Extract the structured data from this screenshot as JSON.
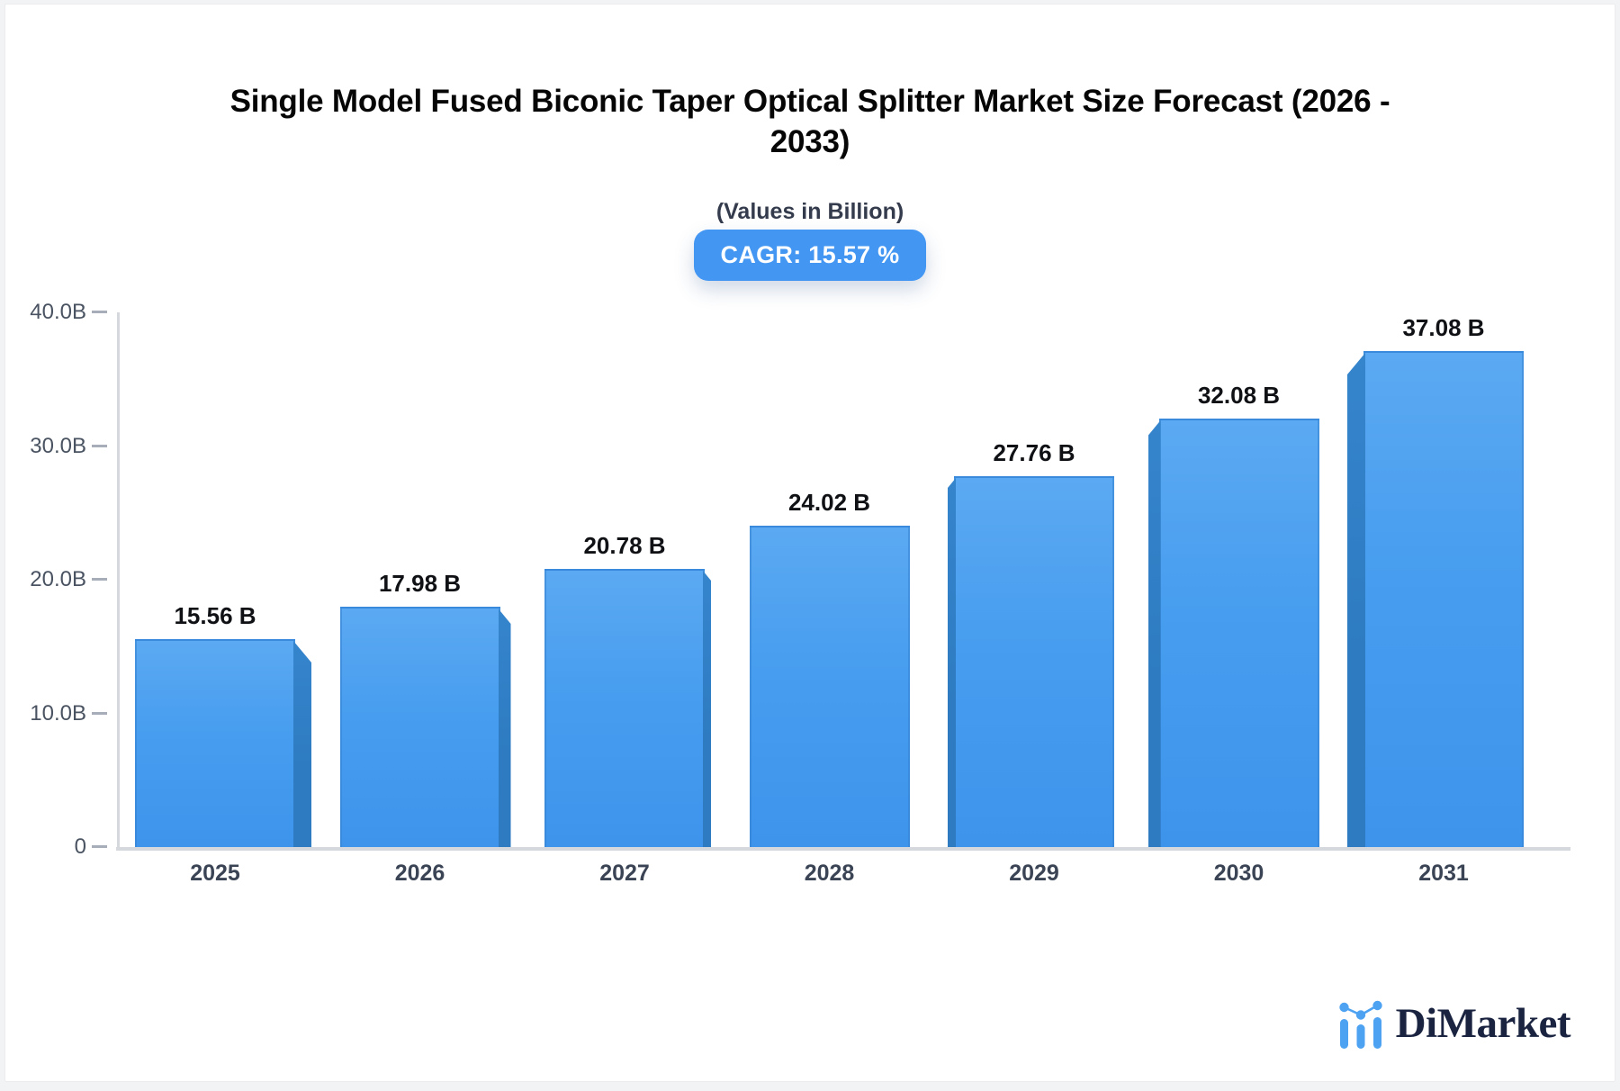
{
  "header": {
    "title_lines": [
      "Single Model Fused Biconic Taper Optical Splitter Market Size Forecast (2026 -",
      "2033)"
    ],
    "subtitle": "(Values in Billion)",
    "cagr_badge": "CAGR: 15.57 %"
  },
  "chart_data": {
    "type": "bar",
    "title": "Single Model Fused Biconic Taper Optical Splitter Market Size Forecast (2026 - 2033)",
    "subtitle": "(Values in Billion)",
    "cagr": "15.57 %",
    "unit": "Billion",
    "categories": [
      "2025",
      "2026",
      "2027",
      "2028",
      "2029",
      "2030",
      "2031"
    ],
    "values": [
      15.56,
      17.98,
      20.78,
      24.02,
      27.76,
      32.08,
      37.08
    ],
    "value_labels": [
      "15.56 B",
      "17.98 B",
      "20.78 B",
      "24.02 B",
      "27.76 B",
      "32.08 B",
      "37.08 B"
    ],
    "ylim": [
      0,
      40
    ],
    "y_ticks": [
      {
        "value": 40,
        "label": "40.0B"
      },
      {
        "value": 30,
        "label": "30.0B"
      },
      {
        "value": 20,
        "label": "20.0B"
      },
      {
        "value": 10,
        "label": "10.0B"
      },
      {
        "value": 0,
        "label": "0"
      }
    ],
    "grid": false,
    "legend": "none",
    "bar_style": "3d-perspective"
  },
  "logo": {
    "brand": "DiMarket",
    "icon": "bar-chart-logo-icon"
  },
  "colors": {
    "accent": "#4397f3",
    "badge_text": "#ffffff",
    "bar_top": "#5ba9f2",
    "bar_bottom": "#3e94eb",
    "bar_side": "#2e7bc1",
    "axis_line": "#d5d8dc",
    "tick": "#a8aeb9",
    "y_label": "#4a5361",
    "x_label": "#3a4455",
    "value_label": "#0f1115",
    "title": "#060607",
    "subtitle": "#333b4c",
    "logo_text": "#1a2440",
    "logo_icon": "#4da2f2"
  }
}
